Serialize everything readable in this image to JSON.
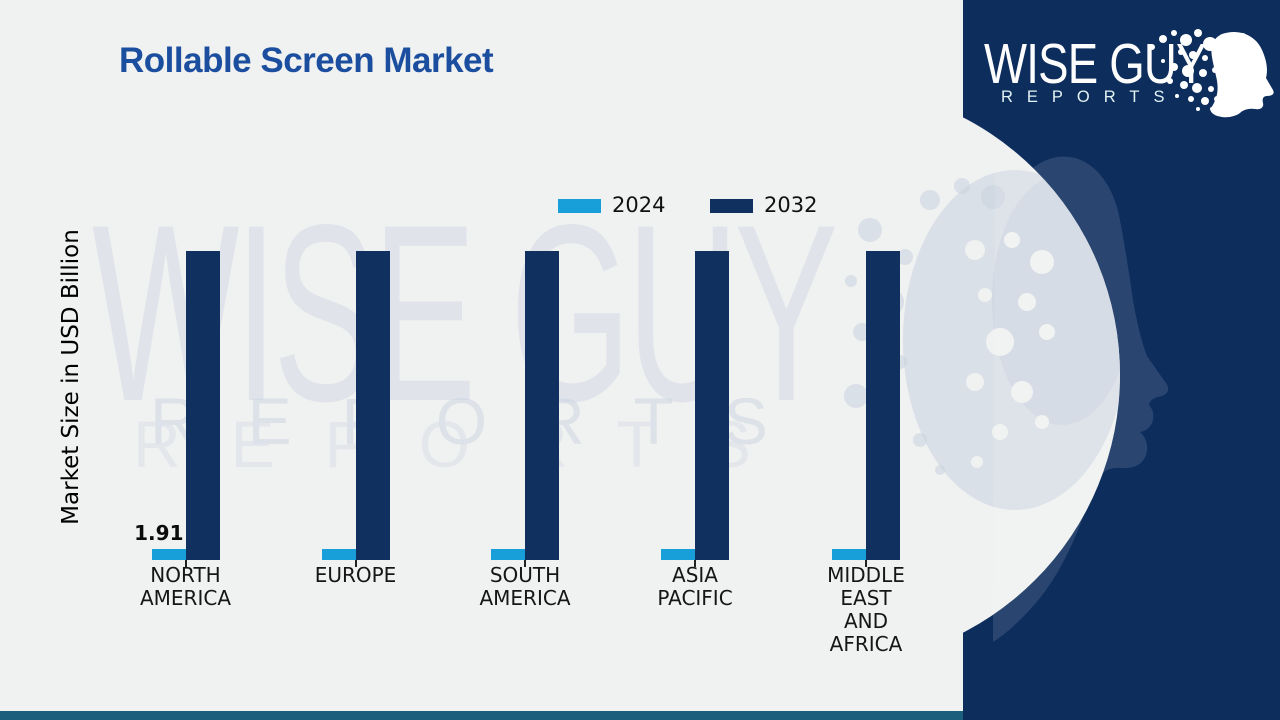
{
  "page": {
    "background": "#f0f1f1",
    "bottom_bar_color": "#1b5f7d",
    "panel_color": "#0d2d5d"
  },
  "title": {
    "text": "Rollable Screen Market",
    "color": "#1b4e9e"
  },
  "y_axis_label": "Market Size in USD Billion",
  "legend": {
    "position": "top-center",
    "items": [
      {
        "label": "2024",
        "color": "#189ed9"
      },
      {
        "label": "2032",
        "color": "#10305f"
      }
    ]
  },
  "chart_data": {
    "type": "bar",
    "categories": [
      "NORTH\nAMERICA",
      "EUROPE",
      "SOUTH\nAMERICA",
      "ASIA\nPACIFIC",
      "MIDDLE\nEAST\nAND\nAFRICA"
    ],
    "series": [
      {
        "name": "2024",
        "color": "#189ed9",
        "values": [
          1.91,
          null,
          null,
          null,
          null
        ]
      },
      {
        "name": "2032",
        "color": "#10305f",
        "values": [
          null,
          null,
          null,
          null,
          null
        ]
      }
    ],
    "value_labels": [
      {
        "series": "2024",
        "category_index": 0,
        "text": "1.91"
      }
    ],
    "title": "Rollable Screen Market",
    "xlabel": "",
    "ylabel": "Market Size in USD Billion",
    "grid": false,
    "legend_position": "top-center",
    "notes": "Stylized infographic: only the North America 2024 value label (1.91) is displayed; all 2032 bars are drawn at one equal tall height and all 2024 bars at one equal short height. No y-axis tick values shown."
  },
  "logo": {
    "line1": "WISE GUY",
    "line2": "REPORTS"
  },
  "watermark": {
    "line1": "WISE GUY",
    "line2": "REPORTS"
  },
  "icons": {
    "logo_face": "face-profile-dots-icon",
    "panel_face": "face-silhouette-watermark-icon",
    "circle_face": "dotted-face-watermark-icon"
  }
}
